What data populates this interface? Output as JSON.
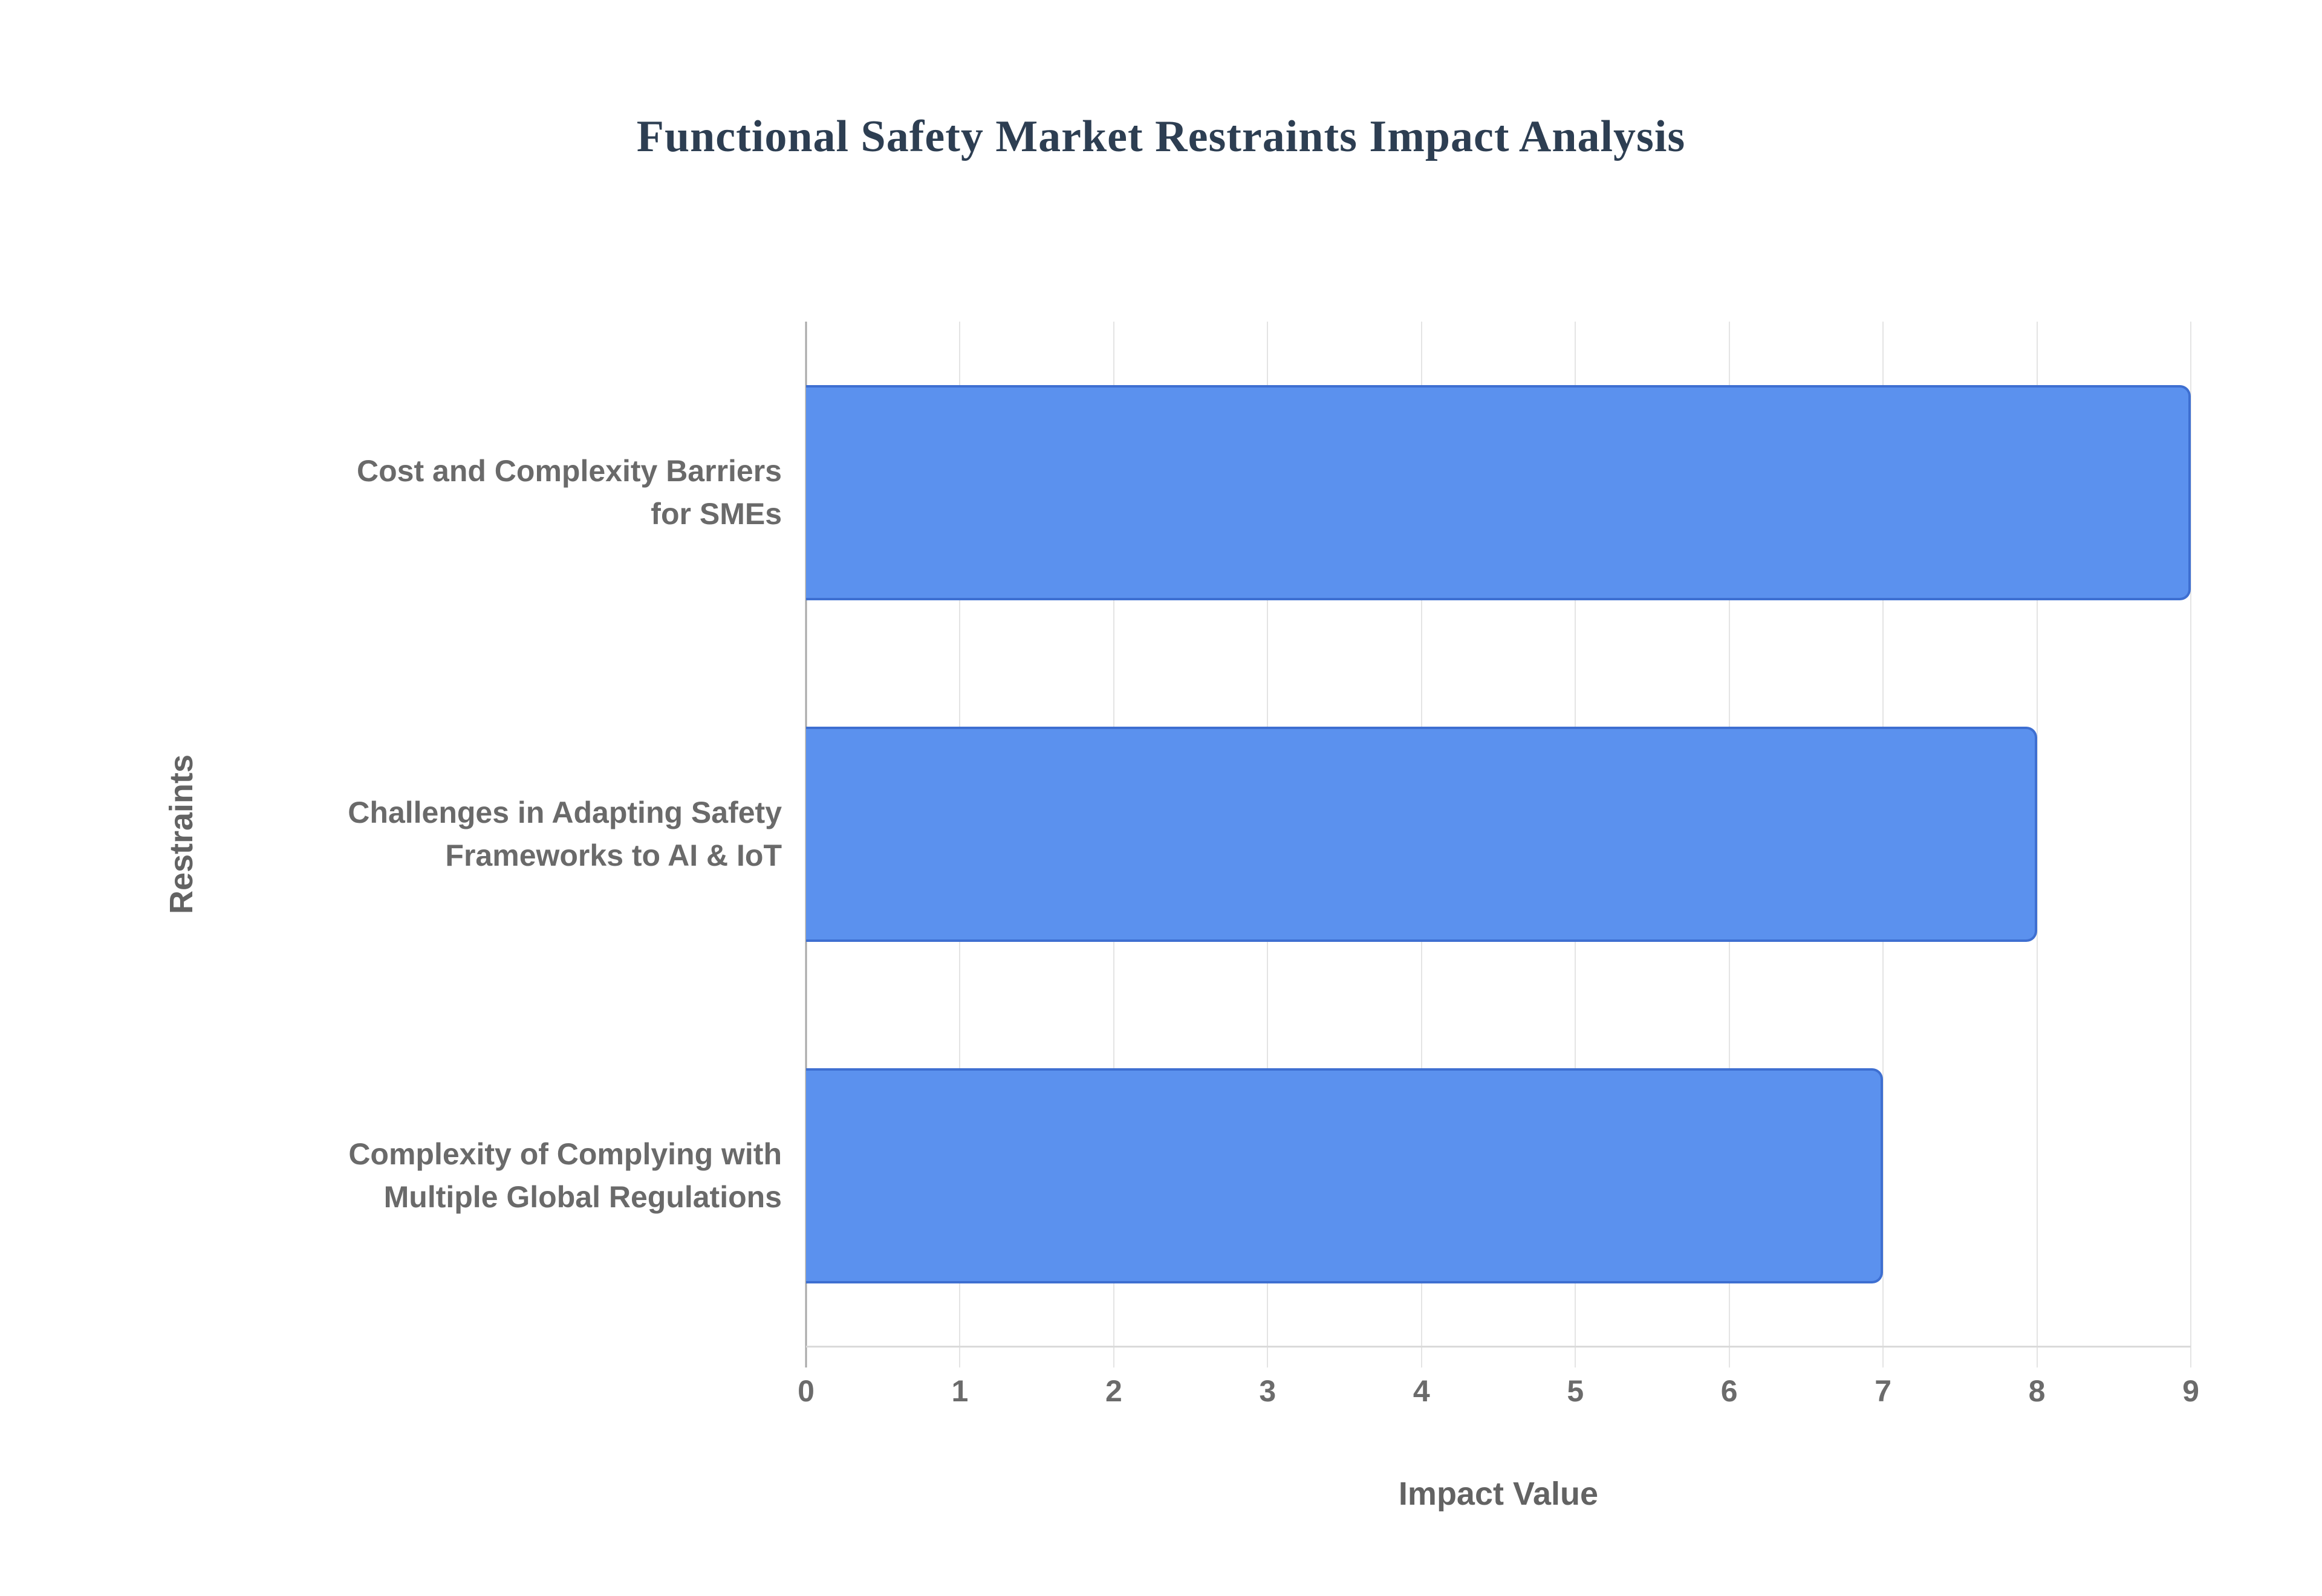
{
  "title": "Functional Safety Market Restraints Impact Analysis",
  "colors": {
    "title": "#2d3e52",
    "bar_fill": "#5b91ee",
    "bar_border": "#3e6fd1",
    "category_label": "#6a6a6a",
    "tick_label": "#6b6b6b",
    "axis_title": "#636363",
    "gridline": "#e4e4e4",
    "zero_line": "#a8a8a8",
    "background": "#ffffff"
  },
  "chart_data": {
    "type": "bar",
    "orientation": "horizontal",
    "title": "Functional Safety Market Restraints Impact Analysis",
    "categories": [
      "Cost and Complexity Barriers\nfor SMEs",
      "Challenges in Adapting Safety\nFrameworks to AI & IoT",
      "Complexity of Complying with\nMultiple Global Regulations"
    ],
    "values": [
      9,
      8,
      7
    ],
    "xlabel": "Impact Value",
    "ylabel": "Restraints",
    "xlim": [
      0,
      9
    ],
    "x_ticks": [
      0,
      1,
      2,
      3,
      4,
      5,
      6,
      7,
      8,
      9
    ],
    "grid": "vertical-gridlines-on",
    "legend": "none"
  }
}
